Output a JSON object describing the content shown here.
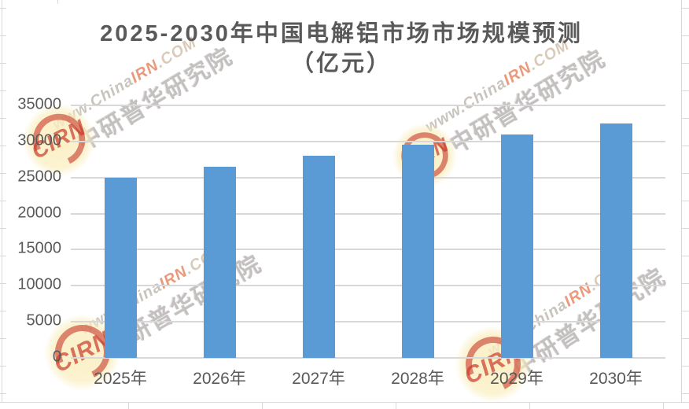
{
  "title": {
    "line1": "2025-2030年中国电解铝市场市场规模预测",
    "line2": "（亿元）",
    "full": "2025-2030年中国电解铝市场市场规模预测（亿元）"
  },
  "chart_data": {
    "type": "bar",
    "title": "2025-2030年中国电解铝市场市场规模预测（亿元）",
    "unit": "亿元",
    "categories": [
      "2025年",
      "2026年",
      "2027年",
      "2028年",
      "2029年",
      "2030年"
    ],
    "values": [
      25000,
      26500,
      28000,
      29500,
      31000,
      32500
    ],
    "xlabel": "",
    "ylabel": "",
    "ylim": [
      0,
      35000
    ],
    "ytick_interval": 5000,
    "yticks": [
      0,
      5000,
      10000,
      15000,
      20000,
      25000,
      30000,
      35000
    ],
    "grid": true,
    "legend": false,
    "bar_color": "#5B9BD5",
    "gridline_color": "#D8D8D8",
    "axis_label_color": "#595959",
    "title_color": "#595959",
    "background_color": "#FFFFFF"
  },
  "watermark": {
    "url_prefix": "www.China",
    "url_brand": "IRN",
    "url_suffix": ".COM",
    "org_name": "中研普华研究院",
    "logo_text": "CIRN",
    "colors": {
      "url_text": "#B5AEA6",
      "brand": "#E2744B",
      "suffix": "#CDB69E",
      "org_text": "#AFA8A8",
      "logo_red": "#C9392B",
      "logo_bg": "#FAEEBE"
    }
  }
}
